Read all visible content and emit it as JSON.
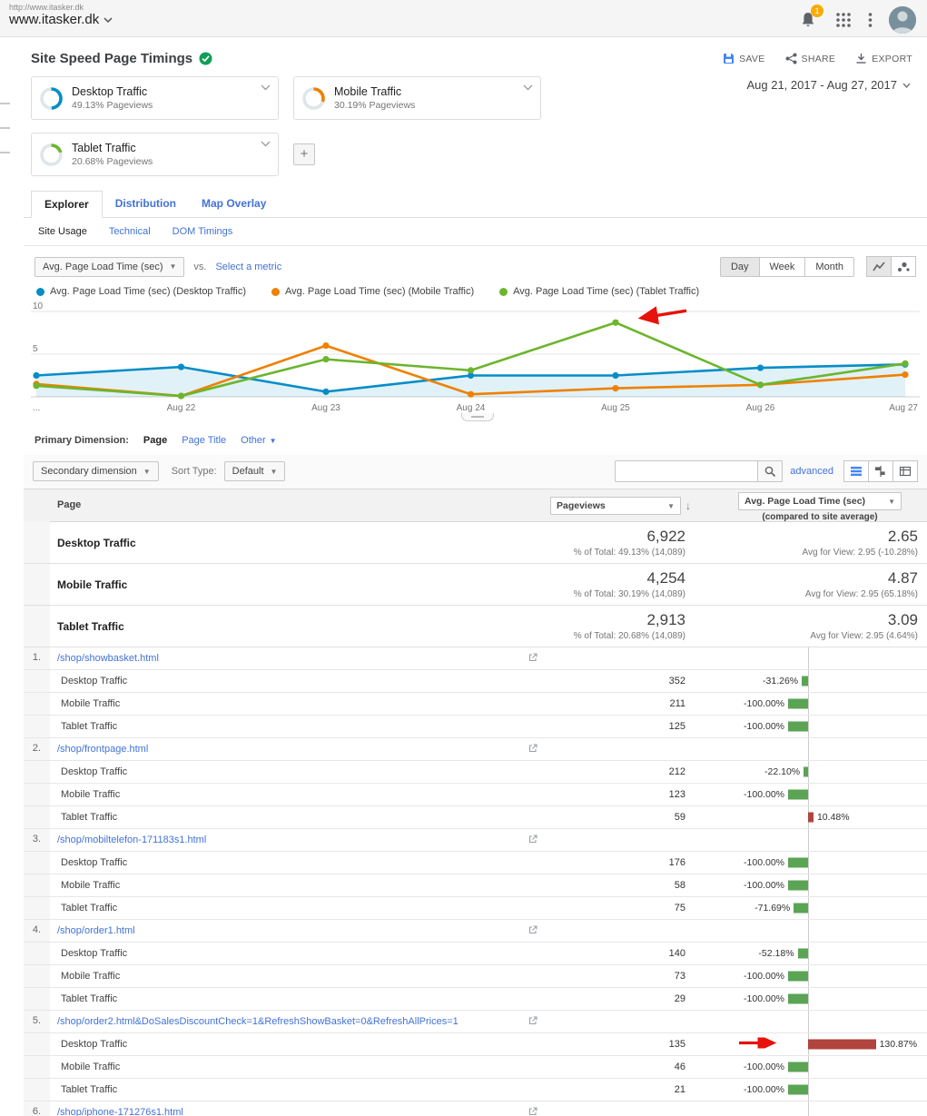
{
  "topbar": {
    "url": "http://www.itasker.dk",
    "account": "www.itasker.dk",
    "notification_count": "1"
  },
  "header": {
    "title": "Site Speed Page Timings",
    "actions": {
      "save": "SAVE",
      "share": "SHARE",
      "export": "EXPORT"
    }
  },
  "segments": [
    {
      "name": "Desktop Traffic",
      "sub": "49.13% Pageviews",
      "pct": 49.13,
      "color": "#058dc7"
    },
    {
      "name": "Mobile Traffic",
      "sub": "30.19% Pageviews",
      "pct": 30.19,
      "color": "#ee8100"
    },
    {
      "name": "Tablet Traffic",
      "sub": "20.68% Pageviews",
      "pct": 20.68,
      "color": "#6cb52d"
    }
  ],
  "add_segment_label": "+",
  "date_range": "Aug 21, 2017 - Aug 27, 2017",
  "tabs": [
    "Explorer",
    "Distribution",
    "Map Overlay"
  ],
  "subtabs": [
    "Site Usage",
    "Technical",
    "DOM Timings"
  ],
  "metric_bar": {
    "metric": "Avg. Page Load Time (sec)",
    "vs": "vs.",
    "select_metric": "Select a metric",
    "granularity": [
      "Day",
      "Week",
      "Month"
    ],
    "active_granularity": "Day"
  },
  "chart_data": {
    "type": "line",
    "x": [
      "...",
      "Aug 22",
      "Aug 23",
      "Aug 24",
      "Aug 25",
      "Aug 26",
      "Aug 27"
    ],
    "series": [
      {
        "name": "Avg. Page Load Time (sec) (Desktop Traffic)",
        "color": "#058dc7",
        "area": true,
        "values": [
          2.5,
          3.5,
          0.6,
          2.5,
          2.5,
          3.4,
          3.8
        ]
      },
      {
        "name": "Avg. Page Load Time (sec) (Mobile Traffic)",
        "color": "#ee8100",
        "area": false,
        "values": [
          1.5,
          0.1,
          6.0,
          0.3,
          1.0,
          1.4,
          2.6
        ]
      },
      {
        "name": "Avg. Page Load Time (sec) (Tablet Traffic)",
        "color": "#6cb52d",
        "area": false,
        "values": [
          1.3,
          0.1,
          4.4,
          3.1,
          8.7,
          1.4,
          3.9
        ]
      }
    ],
    "ylim": [
      0,
      10
    ],
    "yticks": [
      5,
      10
    ],
    "legend_position": "top",
    "grid": true,
    "annotation": "red arrow pointing at Tablet Traffic peak on Aug 25"
  },
  "primary_dimension": {
    "label": "Primary Dimension:",
    "options": [
      "Page",
      "Page Title",
      "Other"
    ],
    "active": "Page"
  },
  "table_toolbar": {
    "secondary_dimension": "Secondary dimension",
    "sort_type_label": "Sort Type:",
    "sort_type_value": "Default",
    "advanced": "advanced",
    "search_value": ""
  },
  "table": {
    "columns": {
      "page": "Page",
      "pageviews": "Pageviews",
      "metric": "Avg. Page Load Time (sec)",
      "metric_sub": "(compared to site average)"
    },
    "summary": [
      {
        "name": "Desktop Traffic",
        "pageviews": "6,922",
        "pageviews_sub": "% of Total: 49.13% (14,089)",
        "metric": "2.65",
        "metric_sub": "Avg for View: 2.95 (-10.28%)"
      },
      {
        "name": "Mobile Traffic",
        "pageviews": "4,254",
        "pageviews_sub": "% of Total: 30.19% (14,089)",
        "metric": "4.87",
        "metric_sub": "Avg for View: 2.95 (65.18%)"
      },
      {
        "name": "Tablet Traffic",
        "pageviews": "2,913",
        "pageviews_sub": "% of Total: 20.68% (14,089)",
        "metric": "3.09",
        "metric_sub": "Avg for View: 2.95 (4.64%)"
      }
    ],
    "rows": [
      {
        "index": "1.",
        "page": "/shop/showbasket.html",
        "segments": [
          {
            "name": "Desktop Traffic",
            "pageviews": "352",
            "delta": "-31.26%"
          },
          {
            "name": "Mobile Traffic",
            "pageviews": "211",
            "delta": "-100.00%"
          },
          {
            "name": "Tablet Traffic",
            "pageviews": "125",
            "delta": "-100.00%"
          }
        ]
      },
      {
        "index": "2.",
        "page": "/shop/frontpage.html",
        "segments": [
          {
            "name": "Desktop Traffic",
            "pageviews": "212",
            "delta": "-22.10%"
          },
          {
            "name": "Mobile Traffic",
            "pageviews": "123",
            "delta": "-100.00%"
          },
          {
            "name": "Tablet Traffic",
            "pageviews": "59",
            "delta": "10.48%"
          }
        ]
      },
      {
        "index": "3.",
        "page": "/shop/mobiltelefon-171183s1.html",
        "segments": [
          {
            "name": "Desktop Traffic",
            "pageviews": "176",
            "delta": "-100.00%"
          },
          {
            "name": "Mobile Traffic",
            "pageviews": "58",
            "delta": "-100.00%"
          },
          {
            "name": "Tablet Traffic",
            "pageviews": "75",
            "delta": "-71.69%"
          }
        ]
      },
      {
        "index": "4.",
        "page": "/shop/order1.html",
        "segments": [
          {
            "name": "Desktop Traffic",
            "pageviews": "140",
            "delta": "-52.18%"
          },
          {
            "name": "Mobile Traffic",
            "pageviews": "73",
            "delta": "-100.00%"
          },
          {
            "name": "Tablet Traffic",
            "pageviews": "29",
            "delta": "-100.00%"
          }
        ]
      },
      {
        "index": "5.",
        "page": "/shop/order2.html&DoSalesDiscountCheck=1&RefreshShowBasket=0&RefreshAllPrices=1",
        "segments": [
          {
            "name": "Desktop Traffic",
            "pageviews": "135",
            "delta": "130.87%",
            "annotated": true
          },
          {
            "name": "Mobile Traffic",
            "pageviews": "46",
            "delta": "-100.00%"
          },
          {
            "name": "Tablet Traffic",
            "pageviews": "21",
            "delta": "-100.00%"
          }
        ]
      },
      {
        "index": "6.",
        "page": "/shop/iphone-171276s1.html",
        "segments": []
      }
    ]
  },
  "colors": {
    "desktop": "#058dc7",
    "mobile": "#ee8100",
    "tablet": "#6cb52d",
    "positive_bar": "#b1443e",
    "negative_bar": "#5aa454",
    "link": "#4272d7",
    "annotation": "#e8110b",
    "verified_badge": "#0f9d58"
  }
}
